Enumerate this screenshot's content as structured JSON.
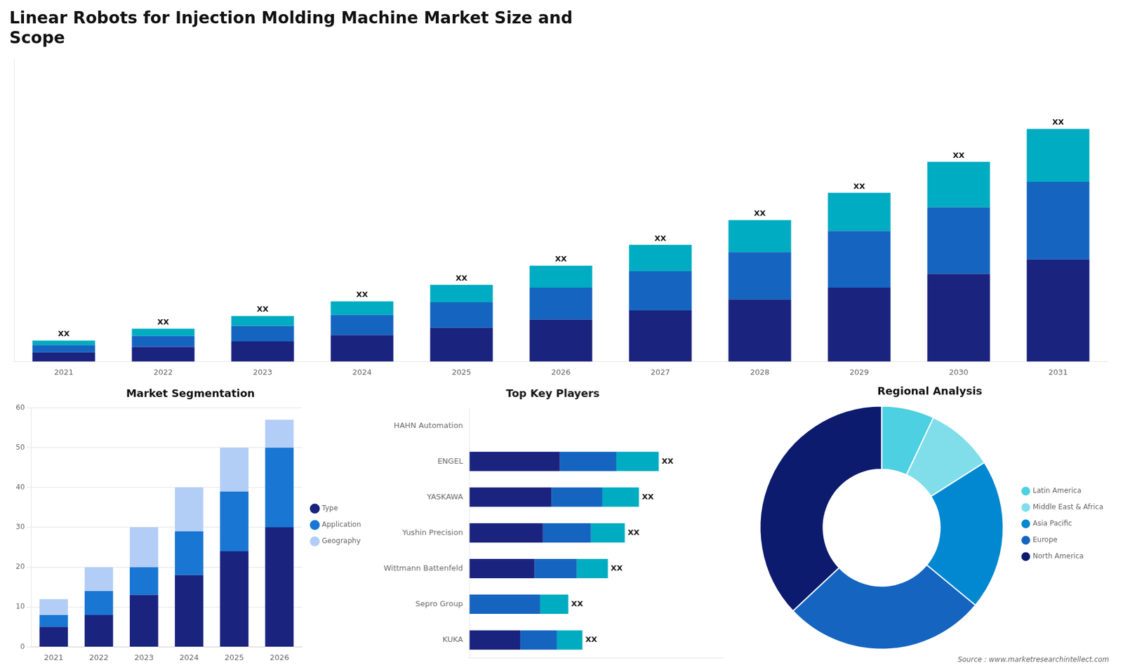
{
  "chart_data": [
    {
      "type": "bar",
      "title": "Linear Robots for Injection Molding Machine Market Size and\nScope",
      "categories": [
        "2021",
        "2022",
        "2023",
        "2024",
        "2025",
        "2026",
        "2027",
        "2028",
        "2029",
        "2030",
        "2031"
      ],
      "series": [
        {
          "color": "#1a237e",
          "values": [
            1.0,
            1.6,
            2.2,
            2.9,
            3.7,
            4.6,
            5.6,
            6.8,
            8.1,
            9.6,
            11.2
          ]
        },
        {
          "color": "#1565c0",
          "values": [
            0.8,
            1.2,
            1.7,
            2.2,
            2.8,
            3.5,
            4.3,
            5.2,
            6.2,
            7.3,
            8.5
          ]
        },
        {
          "color": "#00acc1",
          "values": [
            0.5,
            0.8,
            1.1,
            1.5,
            1.9,
            2.4,
            2.9,
            3.5,
            4.2,
            5.0,
            5.8
          ],
          "value_labels": [
            "XX",
            "XX",
            "XX",
            "XX",
            "XX",
            "XX",
            "XX",
            "XX",
            "XX",
            "XX",
            "XX"
          ]
        }
      ],
      "stacked": true,
      "ylim": [
        0,
        33.15
      ],
      "grid": false,
      "tick_labels": "x"
    },
    {
      "type": "bar",
      "title": "Market Segmentation",
      "categories": [
        "2021",
        "2022",
        "2023",
        "2024",
        "2025",
        "2026"
      ],
      "series": [
        {
          "name": "Type",
          "color": "#1a237e",
          "values": [
            5,
            8,
            13,
            18,
            24,
            30
          ]
        },
        {
          "name": "Application",
          "color": "#1976d2",
          "values": [
            3,
            6,
            7,
            11,
            15,
            20
          ]
        },
        {
          "name": "Geography",
          "color": "#b3cef6",
          "values": [
            4,
            6,
            10,
            11,
            11,
            7
          ]
        }
      ],
      "stacked": true,
      "ylim": [
        0,
        60
      ],
      "yticks": [
        0,
        10,
        20,
        30,
        40,
        50,
        60
      ],
      "grid": true,
      "legend": "right"
    },
    {
      "type": "bar",
      "orientation": "horizontal",
      "title": "Top Key Players",
      "categories": [
        "HAHN Automation",
        "ENGEL",
        "YASKAWA",
        "Yushin Precision",
        "Wittmann Battenfeld",
        "Sepro Group",
        "KUKA"
      ],
      "series": [
        {
          "color": "#1a237e",
          "values": [
            0,
            3.2,
            2.9,
            2.6,
            2.3,
            0,
            1.8
          ]
        },
        {
          "color": "#1565c0",
          "values": [
            0,
            2.0,
            1.8,
            1.7,
            1.5,
            2.5,
            1.3
          ]
        },
        {
          "color": "#00acc1",
          "values": [
            0,
            1.5,
            1.3,
            1.2,
            1.1,
            1.0,
            0.9
          ],
          "value_labels": [
            null,
            "XX",
            "XX",
            "XX",
            "XX",
            "XX",
            "XX"
          ]
        }
      ],
      "stacked": true,
      "xlim": [
        0,
        9
      ],
      "grid": false,
      "tick_labels": "y"
    },
    {
      "type": "doughnut",
      "title": "Regional Analysis",
      "categories": [
        "Latin America",
        "Middle East &\nAfrica",
        "Asia Pacific",
        "Europe",
        "North America"
      ],
      "values": [
        7,
        9,
        20,
        27,
        37
      ],
      "colors": [
        "#4dd0e1",
        "#80deea",
        "#0288d1",
        "#1565c0",
        "#0d1b6e"
      ],
      "legend": "right",
      "annotations": [
        "Source : www.marketresearchintellect.com"
      ]
    }
  ]
}
